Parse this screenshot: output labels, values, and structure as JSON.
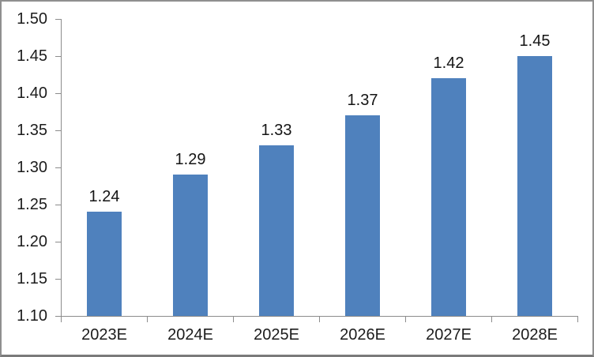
{
  "chart_data": {
    "type": "bar",
    "title": "",
    "xlabel": "",
    "ylabel": "",
    "categories": [
      "2023E",
      "2024E",
      "2025E",
      "2026E",
      "2027E",
      "2028E"
    ],
    "values": [
      1.24,
      1.29,
      1.33,
      1.37,
      1.42,
      1.45
    ],
    "data_labels": [
      "1.24",
      "1.29",
      "1.33",
      "1.37",
      "1.42",
      "1.45"
    ],
    "ylim": [
      1.1,
      1.5
    ],
    "ytick_step": 0.05,
    "ytick_labels": [
      "1.10",
      "1.15",
      "1.20",
      "1.25",
      "1.30",
      "1.35",
      "1.40",
      "1.45",
      "1.50"
    ],
    "grid": false,
    "legend": "none",
    "colors": {
      "bar_fill": "#4F81BD",
      "axis_line": "#8c8c8c",
      "text": "#1c1c1c",
      "frame_border": "#8f8f8f",
      "background": "#ffffff"
    }
  }
}
